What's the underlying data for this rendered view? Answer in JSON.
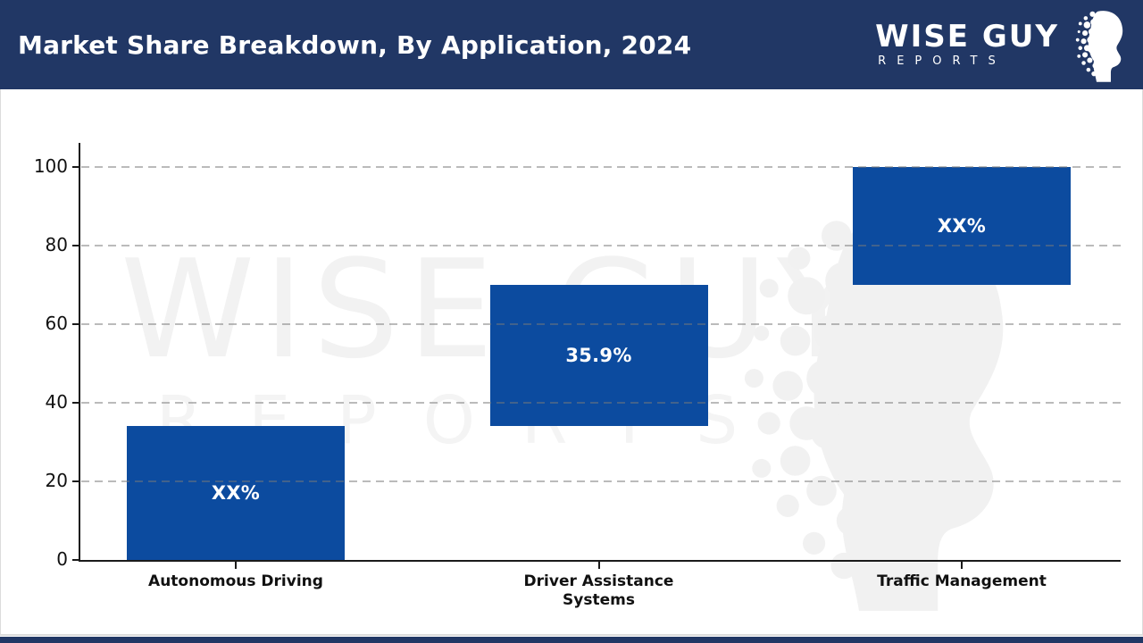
{
  "header": {
    "title": "Market Share Breakdown, By Application, 2024"
  },
  "logo": {
    "line1": "WISE GUY",
    "line2": "REPORTS"
  },
  "watermark": {
    "line1": "WISE GUY",
    "line2": "REPORTS"
  },
  "colors": {
    "header_bg": "#213765",
    "bar_blue": "#0c4b9f",
    "gridline": "#d9d9d9",
    "watermark": "#f2f2f2"
  },
  "chart_data": {
    "type": "bar",
    "subtype": "waterfall-stacked-segments",
    "title": "Market Share Breakdown, By Application, 2024",
    "categories": [
      "Autonomous Driving",
      "Driver Assistance Systems",
      "Traffic Management"
    ],
    "bars": [
      {
        "category": "Autonomous Driving",
        "start": 0,
        "end": 34.1,
        "label": "XX%"
      },
      {
        "category": "Driver Assistance Systems",
        "start": 34.1,
        "end": 70,
        "label": "35.9%"
      },
      {
        "category": "Traffic Management",
        "start": 70,
        "end": 100,
        "label": "XX%"
      }
    ],
    "yticks": [
      0,
      20,
      40,
      60,
      80,
      100
    ],
    "ylim": [
      0,
      105
    ],
    "xlabel": "",
    "ylabel": "",
    "grid": "horizontal-dashed",
    "legend": "none",
    "bar_color": "#0c4b9f",
    "bar_label_color": "#ffffff"
  }
}
